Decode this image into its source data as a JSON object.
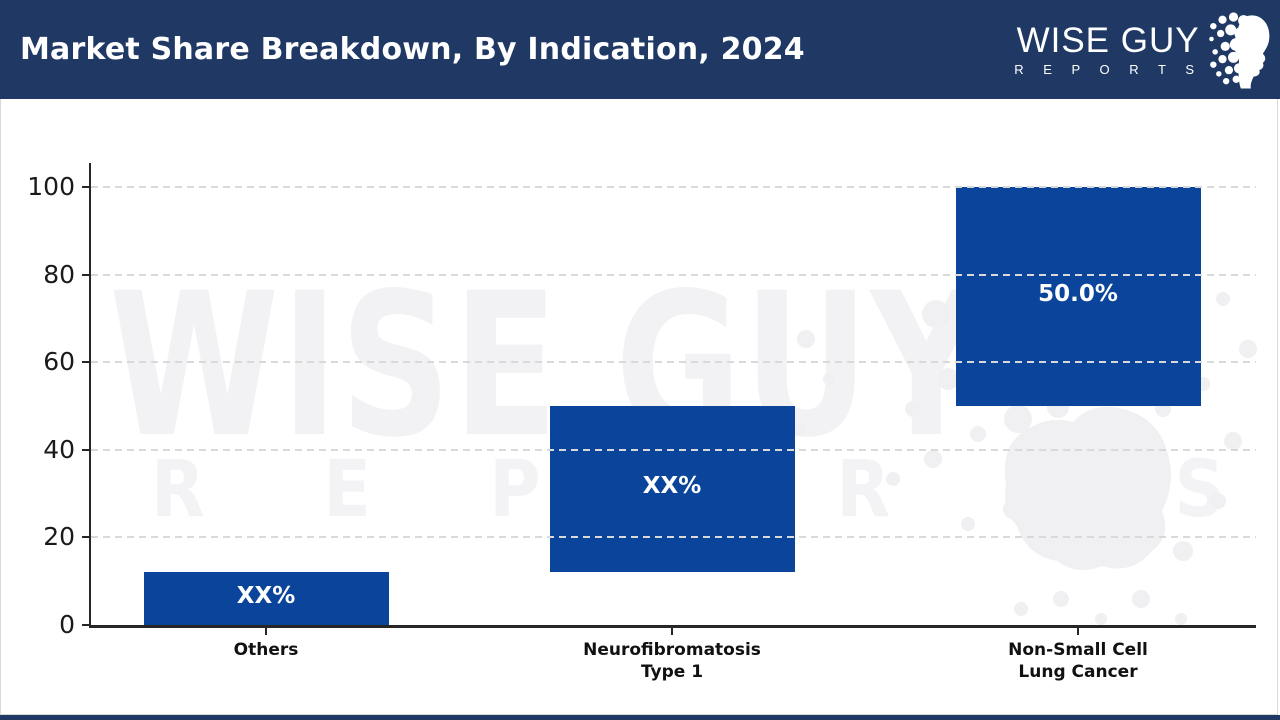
{
  "header": {
    "title": "Market Share Breakdown, By Indication, 2024",
    "logo": {
      "line1": "WISE GUY",
      "line2": "R E P O R T S"
    }
  },
  "watermark": {
    "line1": "WISE GUY",
    "line2": "R E P O R T S"
  },
  "colors": {
    "header_bg": "#1f3864",
    "bar": "#0b459b",
    "axis": "#262626",
    "grid": "#d9d9d9",
    "tick_label": "#1a1a1a",
    "bar_label": "#ffffff",
    "watermark": "#f0f0f2"
  },
  "chart_data": {
    "type": "bar",
    "variant": "waterfall",
    "title": "Market Share Breakdown, By Indication, 2024",
    "categories": [
      "Others",
      "Neurofibromatosis\nType 1",
      "Non-Small Cell\nLung Cancer"
    ],
    "segments": [
      {
        "category": "Others",
        "start": 0,
        "end": 12,
        "label": "XX%"
      },
      {
        "category": "Neurofibromatosis Type 1",
        "start": 12,
        "end": 50,
        "label": "XX%"
      },
      {
        "category": "Non-Small Cell Lung Cancer",
        "start": 50,
        "end": 100,
        "label": "50.0%"
      }
    ],
    "yticks": [
      0,
      20,
      40,
      60,
      80,
      100
    ],
    "ylim": [
      0,
      105
    ],
    "xlabel": "",
    "ylabel": "",
    "grid": "horizontal-dashed",
    "legend": "none"
  }
}
